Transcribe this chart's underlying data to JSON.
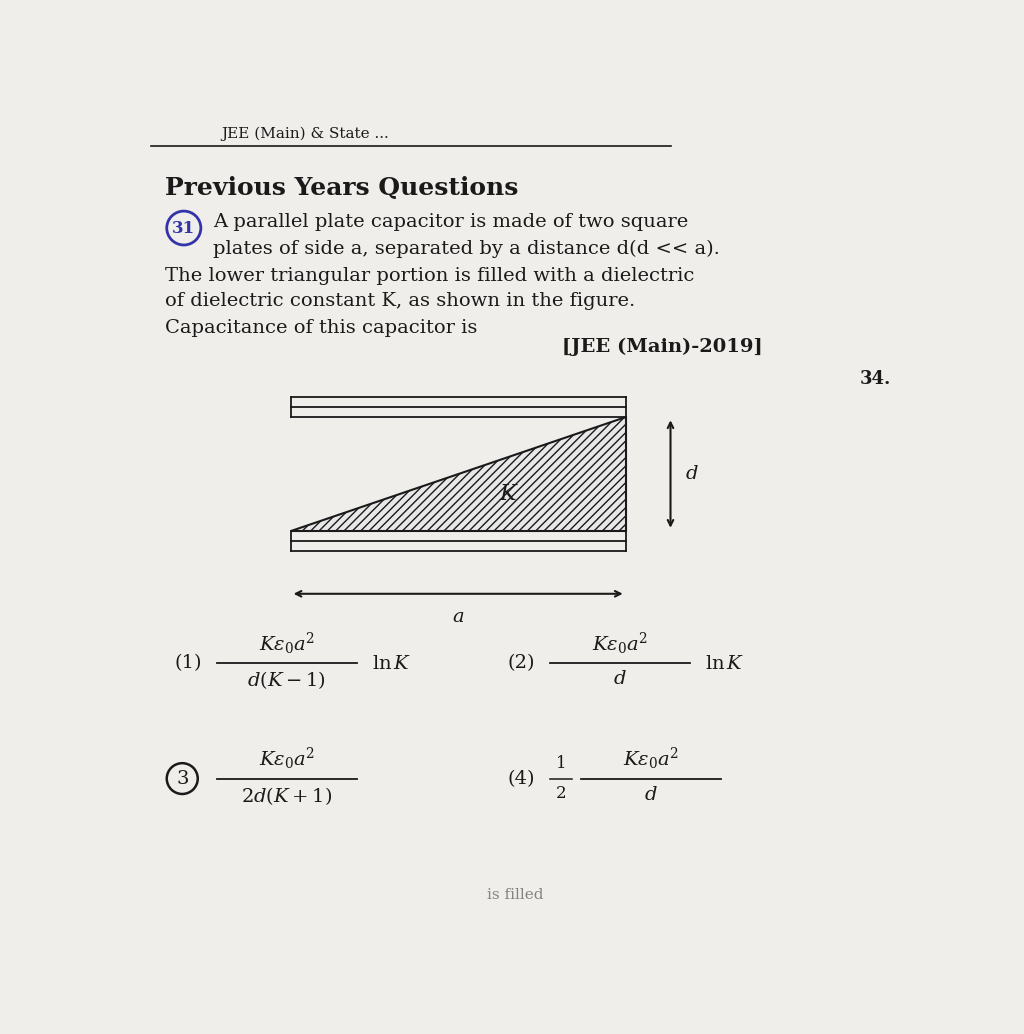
{
  "background_color": "#f0eeea",
  "text_color": "#1a1a1a",
  "section_title": "Previous Years Questions",
  "q_num": "31",
  "q_line1": "A parallel plate capacitor is made of two square",
  "q_line2": "plates of side a, separated by a distance d(d << a).",
  "q_line3": "The lower triangular portion is filled with a dielectric",
  "q_line4": "of dielectric constant K, as shown in the figure.",
  "q_line5": "Capacitance of this capacitor is",
  "ref": "[JEE (Main)-2019]",
  "side_num": "34.",
  "label_a": "a",
  "label_d": "d",
  "label_K": "K",
  "plate_color": "#999999",
  "plate_edge": "#333333",
  "hatch_color": "#444444",
  "diagram_bg": "#f0eeea",
  "arrow_color": "#222222"
}
